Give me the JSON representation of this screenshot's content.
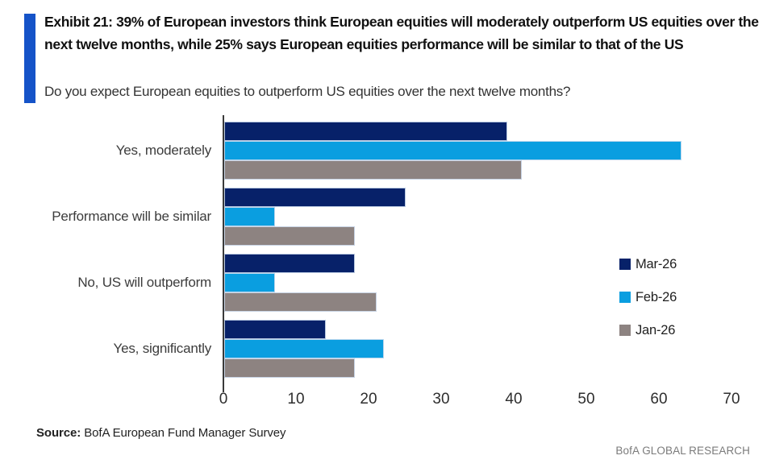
{
  "header": {
    "exhibit_title": "Exhibit 21: 39% of European investors think European equities will moderately outperform US equities over the next twelve months, while 25% says European equities performance will be similar to that of the US",
    "question": "Do you expect European equities to outperform US equities over the next twelve months?"
  },
  "chart_data": {
    "type": "bar",
    "orientation": "horizontal",
    "title": "Do you expect European equities to outperform US equities over the next twelve months?",
    "categories": [
      "Yes, moderately",
      "Performance will be similar",
      "No, US will outperform",
      "Yes, significantly"
    ],
    "series": [
      {
        "name": "Mar-26",
        "color": "#072169",
        "values": [
          39,
          25,
          18,
          14
        ]
      },
      {
        "name": "Feb-26",
        "color": "#0A9EE0",
        "values": [
          63,
          7,
          7,
          22
        ]
      },
      {
        "name": "Jan-26",
        "color": "#8D8381",
        "values": [
          41,
          18,
          21,
          18
        ]
      }
    ],
    "xlim": [
      0,
      70
    ],
    "x_ticks": [
      "0",
      "10",
      "20",
      "30",
      "40",
      "50",
      "60",
      "70"
    ],
    "legend_position": "right",
    "grid": false
  },
  "footer": {
    "source_label": "Source:",
    "source_text": " BofA European Fund Manager Survey",
    "brand": "BofA GLOBAL RESEARCH"
  },
  "colors": {
    "accent_bar": "#1553C8",
    "axis": "#3a3a3a"
  }
}
